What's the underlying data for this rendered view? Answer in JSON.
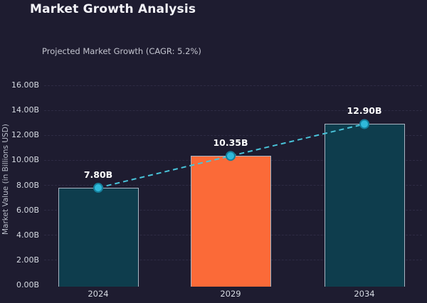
{
  "title": "Market Growth Analysis",
  "subtitle": "Projected Market Growth (CAGR: 5.2%)",
  "colors": {
    "background": "#1e1c30",
    "bar_teal": "#0e3d4d",
    "bar_orange": "#fb6a38",
    "bar_border": "#a9b4c2",
    "trend_line": "#49c3d9",
    "marker_fill": "#2fb9da",
    "marker_edge": "#157f9b",
    "grid": "#2e2b44",
    "title_text": "#f2f2f7",
    "subtitle_text": "#c3c4cf",
    "tick_text": "#d6dae2",
    "axis_title_text": "#b9bdc9",
    "value_label_text": "#ffffff"
  },
  "chart_data": {
    "type": "bar",
    "title": "Market Growth Analysis",
    "subtitle": "Projected Market Growth (CAGR: 5.2%)",
    "categories": [
      "2024",
      "2029",
      "2034"
    ],
    "series": [
      {
        "name": "Market Value",
        "values": [
          7.8,
          10.35,
          12.9
        ],
        "labels": [
          "7.80B",
          "10.35B",
          "12.90B"
        ]
      }
    ],
    "bar_colors": [
      "#0e3d4d",
      "#fb6a38",
      "#0e3d4d"
    ],
    "trend_line": {
      "style": "dashed",
      "values": [
        7.8,
        10.35,
        12.9
      ]
    },
    "xlabel": "",
    "ylabel": "Market Value (in Billions USD)",
    "ylim": [
      0,
      16
    ],
    "ytick_step": 2,
    "ytick_labels": [
      "0.00B",
      "2.00B",
      "4.00B",
      "6.00B",
      "8.00B",
      "10.00B",
      "12.00B",
      "14.00B",
      "16.00B"
    ],
    "grid": true,
    "legend": false
  }
}
